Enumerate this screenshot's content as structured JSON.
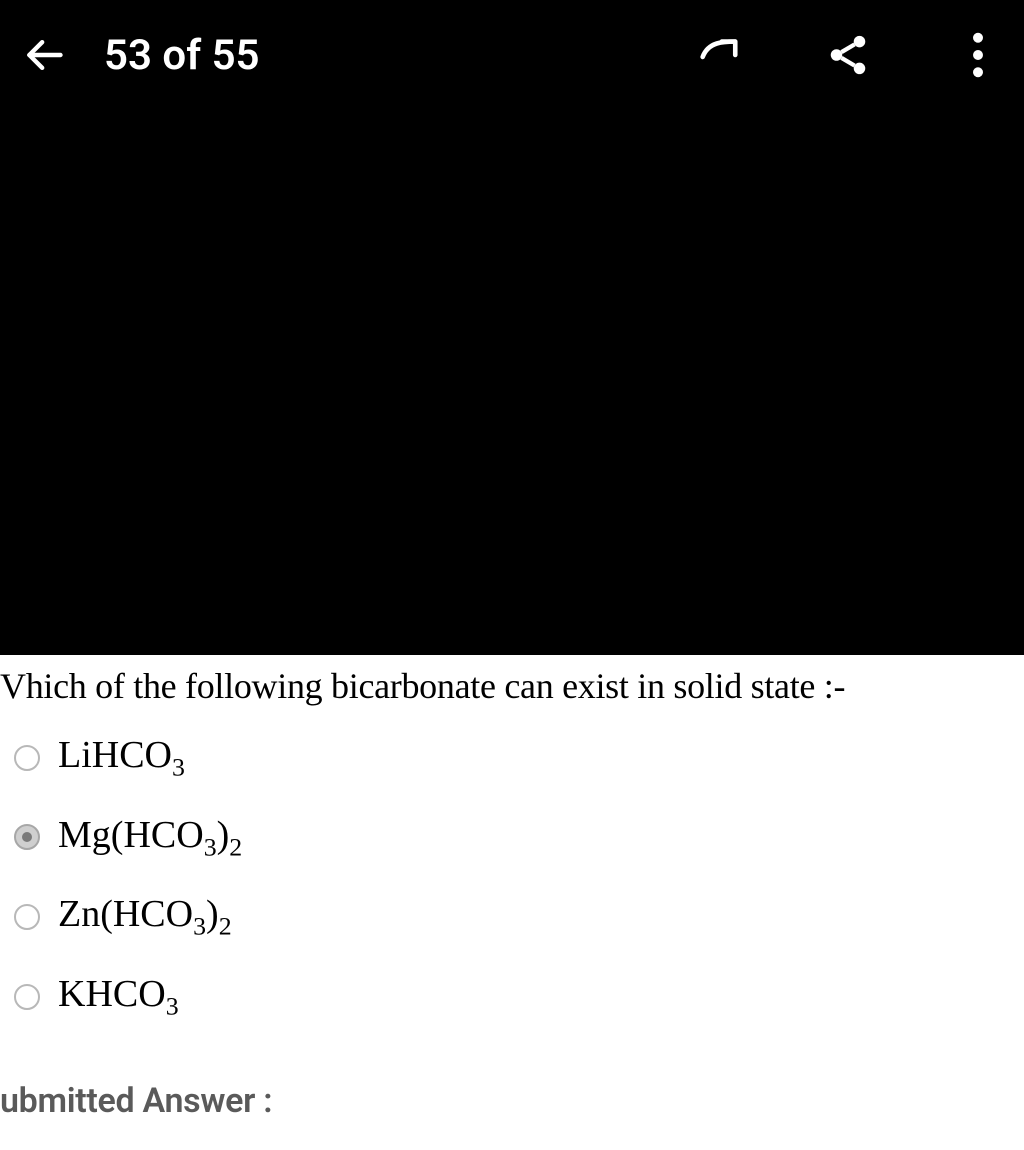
{
  "header": {
    "counter_text": "53 of 55"
  },
  "question": {
    "prompt_visible": "Vhich of the following bicarbonate can exist in solid state :-",
    "options": [
      {
        "id": "opt-a",
        "formula_html": "LiHCO<sub>3</sub>",
        "selected": false
      },
      {
        "id": "opt-b",
        "formula_html": "Mg(HCO<sub>3</sub>)<sub>2</sub>",
        "selected": true
      },
      {
        "id": "opt-c",
        "formula_html": "Zn(HCO<sub>3</sub>)<sub>2</sub>",
        "selected": false
      },
      {
        "id": "opt-d",
        "formula_html": "KHCO<sub>3</sub>",
        "selected": false
      }
    ],
    "submitted_label": "ubmitted Answer :"
  },
  "icons": {
    "back": "back-arrow",
    "forward": "forward-arrow",
    "share": "share",
    "more": "more-vertical"
  },
  "colors": {
    "bg_black": "#000000",
    "bg_white": "#ffffff",
    "text_white": "#ffffff",
    "text_black": "#000000",
    "text_muted": "#5a5a5a",
    "radio_border": "#b8b8b8",
    "radio_fill": "#cfcfcf",
    "radio_dot": "#7a7a7a"
  }
}
